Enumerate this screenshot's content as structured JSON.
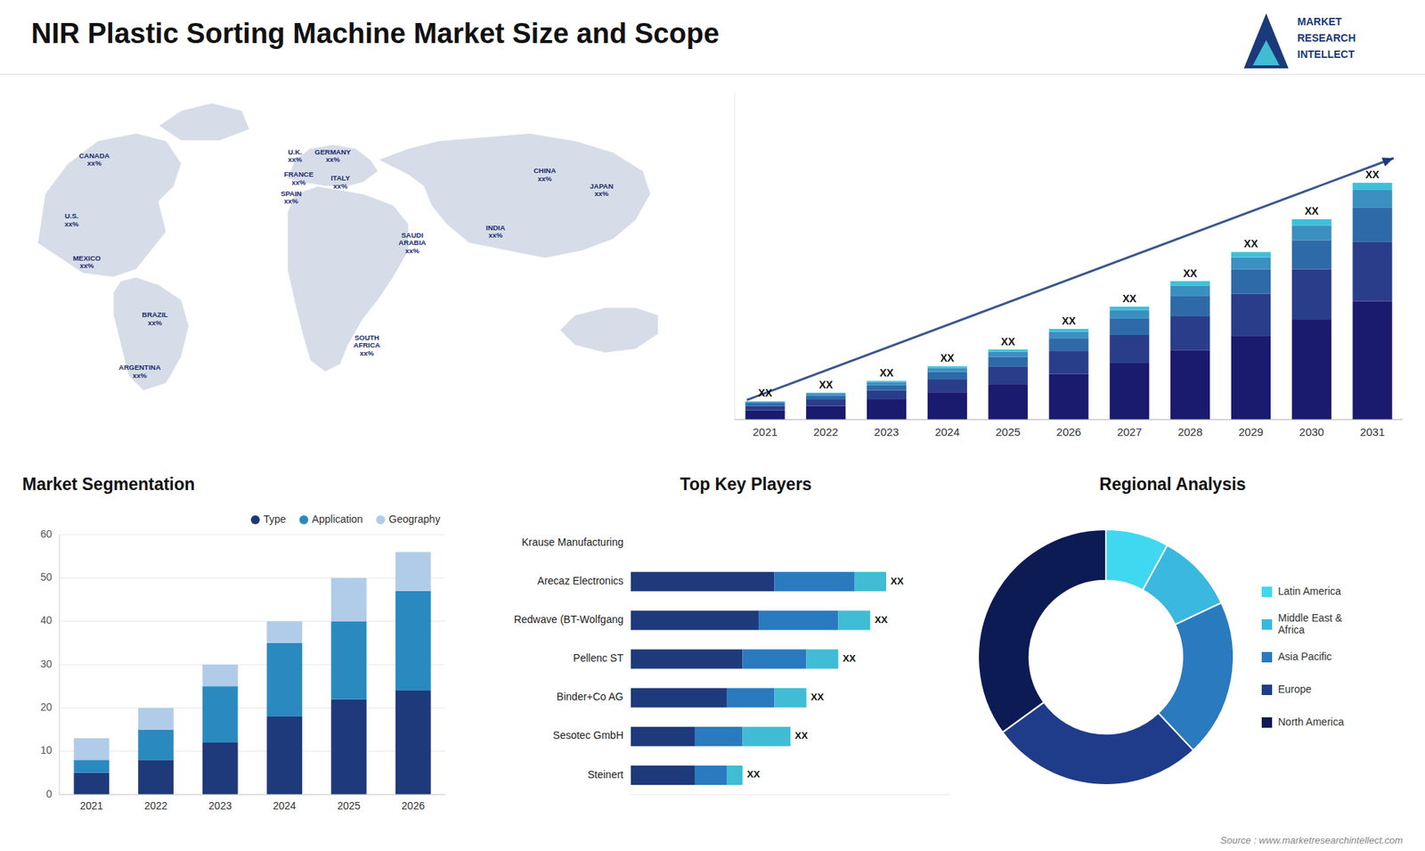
{
  "title": "NIR Plastic Sorting Machine Market Size and Scope",
  "annotations": [
    "Source : www.marketresearchintellect.com",
    "MARKET",
    "RESEARCH",
    "INTELLECT"
  ],
  "chart_data": [
    {
      "type": "map",
      "annotations": [
        "CANADA\nxx%",
        "U.S.\nxx%",
        "MEXICO\nxx%",
        "BRAZIL\nxx%",
        "ARGENTINA\nxx%",
        "U.K.\nxx%",
        "FRANCE\nxx%",
        "SPAIN\nxx%",
        "GERMANY\nxx%",
        "ITALY\nxx%",
        "SAUDI\nARABIA\nxx%",
        "SOUTH\nAFRICA\nxx%",
        "CHINA\nxx%",
        "INDIA\nxx%",
        "JAPAN\nxx%"
      ]
    },
    {
      "type": "bar",
      "stacked": true,
      "categories": [
        "2021",
        "2022",
        "2023",
        "2024",
        "2025",
        "2026",
        "2027",
        "2028",
        "2029",
        "2030",
        "2031"
      ],
      "series": [
        {
          "color": "#1a1a6e",
          "values": [
            1.0,
            1.5,
            2.2,
            3.0,
            3.9,
            5.0,
            6.2,
            7.6,
            9.2,
            11.0,
            13.0
          ]
        },
        {
          "color": "#2a3d8a",
          "values": [
            0.5,
            0.7,
            1.0,
            1.4,
            1.9,
            2.5,
            3.1,
            3.8,
            4.6,
            5.5,
            6.5
          ]
        },
        {
          "color": "#2e6aa8",
          "values": [
            0.3,
            0.45,
            0.6,
            0.85,
            1.1,
            1.45,
            1.8,
            2.2,
            2.7,
            3.2,
            3.8
          ]
        },
        {
          "color": "#3a90c0",
          "values": [
            0.15,
            0.2,
            0.3,
            0.4,
            0.55,
            0.7,
            0.9,
            1.1,
            1.3,
            1.6,
            1.9
          ]
        },
        {
          "color": "#40c0d8",
          "values": [
            0.05,
            0.1,
            0.15,
            0.2,
            0.25,
            0.3,
            0.4,
            0.5,
            0.6,
            0.7,
            0.8
          ]
        }
      ],
      "ylim": [
        0,
        35.88
      ],
      "tick_labels": "x",
      "annotations": [
        "XX",
        "XX",
        "XX",
        "XX",
        "XX",
        "XX",
        "XX",
        "XX",
        "XX",
        "XX",
        "XX"
      ]
    },
    {
      "type": "bar",
      "stacked": true,
      "title": "Market Segmentation",
      "categories": [
        "2021",
        "2022",
        "2023",
        "2024",
        "2025",
        "2026"
      ],
      "series": [
        {
          "name": "Type",
          "color": "#1e3a7a",
          "values": [
            5,
            8,
            12,
            18,
            22,
            24
          ]
        },
        {
          "name": "Application",
          "color": "#2a8abf",
          "values": [
            3,
            7,
            13,
            17,
            18,
            23
          ]
        },
        {
          "name": "Geography",
          "color": "#b0cce8",
          "values": [
            5,
            5,
            5,
            5,
            10,
            9
          ]
        }
      ],
      "ylim": [
        0,
        60
      ],
      "yticks": [
        0,
        10,
        20,
        30,
        40,
        50,
        60
      ],
      "grid": true,
      "legend": "top"
    },
    {
      "type": "bar",
      "orientation": "horizontal",
      "stacked": true,
      "title": "Top Key Players",
      "categories": [
        "Krause Manufacturing",
        "Arecaz Electronics",
        "Redwave (BT-Wolfgang",
        "Pellenc ST",
        "Binder+Co AG",
        "Sesotec GmbH",
        "Steinert"
      ],
      "series": [
        {
          "color": "#1e3a7a",
          "values": [
            0,
            4.5,
            4.0,
            3.5,
            3.0,
            2.0,
            2.0
          ]
        },
        {
          "color": "#2a7abf",
          "values": [
            0,
            2.5,
            2.5,
            2.0,
            1.5,
            1.5,
            1.0
          ]
        },
        {
          "color": "#40bcd4",
          "values": [
            0,
            1.0,
            1.0,
            1.0,
            1.0,
            1.5,
            0.5
          ]
        }
      ],
      "xlim": [
        0,
        10
      ],
      "tick_labels": "y",
      "annotations": [
        null,
        "XX",
        "XX",
        "XX",
        "XX",
        "XX",
        "XX"
      ]
    },
    {
      "type": "pie",
      "title": "Regional Analysis",
      "categories": [
        "Latin America",
        "Middle East &\nAfrica",
        "Asia Pacific",
        "Europe",
        "North America"
      ],
      "values": [
        8,
        10,
        20,
        27,
        35
      ],
      "colors": [
        "#40d8f0",
        "#3ab8e0",
        "#2a7abf",
        "#1e3c8a",
        "#0d1b55"
      ],
      "legend": "right"
    }
  ]
}
